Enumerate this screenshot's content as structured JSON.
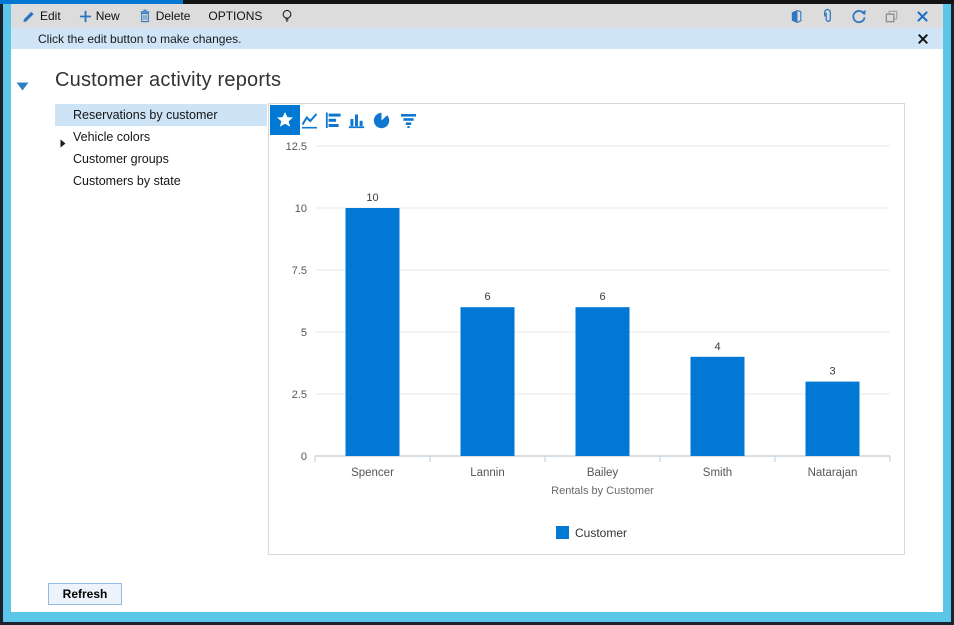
{
  "toolbar": {
    "edit": "Edit",
    "new": "New",
    "delete": "Delete",
    "options": "OPTIONS"
  },
  "notification": {
    "text": "Click the edit button to make changes."
  },
  "page": {
    "title": "Customer activity reports"
  },
  "sidebar": {
    "items": [
      {
        "label": "Reservations by customer"
      },
      {
        "label": "Vehicle colors"
      },
      {
        "label": "Customer groups"
      },
      {
        "label": "Customers by state"
      }
    ],
    "selected": "Reservations by customer"
  },
  "footer": {
    "refresh": "Refresh"
  },
  "chart_data": {
    "type": "bar",
    "categories": [
      "Spencer",
      "Lannin",
      "Bailey",
      "Smith",
      "Natarajan"
    ],
    "values": [
      10,
      6,
      6,
      4,
      3
    ],
    "series": [
      {
        "name": "Customer",
        "values": [
          10,
          6,
          6,
          4,
          3
        ]
      }
    ],
    "title": "",
    "xlabel": "Rentals by Customer",
    "ylabel": "",
    "ylim": [
      0,
      12.5
    ],
    "yticks": [
      0,
      2.5,
      5,
      7.5,
      10,
      12.5
    ],
    "grid": true,
    "legend": [
      "Customer"
    ],
    "legend_position": "bottom",
    "bar_color": "#0078d4"
  },
  "colors": {
    "accent": "#0078d4",
    "frame_cyan": "#5cc6e8",
    "toolbar_bg": "#dcdcdc",
    "notification_bg": "#cfe4f6",
    "selected_item_bg": "#cde3f6",
    "gridline": "#e9e9e9",
    "axis_line": "#c9d3de"
  }
}
